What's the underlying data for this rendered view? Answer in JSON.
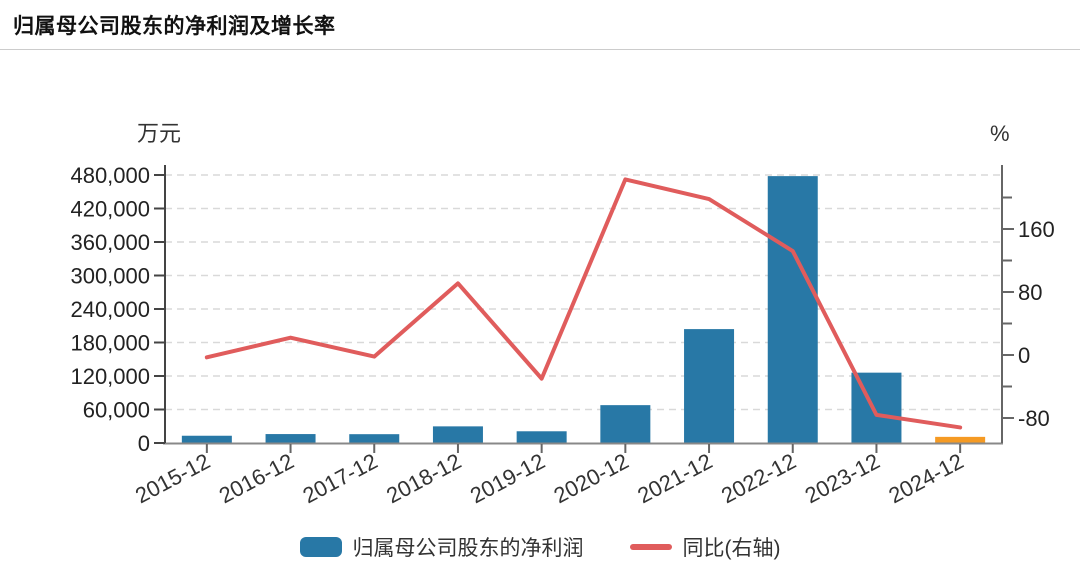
{
  "header": {
    "title": "归属母公司股东的净利润及增长率"
  },
  "chart_data": {
    "type": "bar",
    "title": "归属母公司股东的净利润及增长率",
    "categories": [
      "2015-12",
      "2016-12",
      "2017-12",
      "2018-12",
      "2019-12",
      "2020-12",
      "2021-12",
      "2022-12",
      "2023-12",
      "2024-12"
    ],
    "series": [
      {
        "name": "归属母公司股东的净利润",
        "type": "bar",
        "yaxis": "left",
        "unit": "万元",
        "values": [
          13000,
          16000,
          15800,
          29800,
          21000,
          67800,
          204000,
          478000,
          126000,
          11000
        ]
      },
      {
        "name": "同比(右轴)",
        "type": "line",
        "yaxis": "right",
        "unit": "%",
        "values": [
          -3,
          22,
          -2,
          91,
          -30,
          223,
          198,
          132,
          -76,
          -92
        ]
      }
    ],
    "left_axis": {
      "unit": "万元",
      "min": 0,
      "max": 480000,
      "tick_step": 60000,
      "grid": "dashed"
    },
    "right_axis": {
      "unit": "%",
      "labeled_ticks": [
        160,
        80,
        0,
        -80
      ],
      "minor_ticks": [
        200,
        120,
        40,
        -40
      ]
    },
    "colors": {
      "bar": "#2878a6",
      "bar_last": "#f59a23",
      "line": "#e05c5c"
    },
    "legend": [
      {
        "label": "归属母公司股东的净利润",
        "swatch": "bar-swatch",
        "color": "#2878a6"
      },
      {
        "label": "同比(右轴)",
        "swatch": "line-swatch",
        "color": "#e05c5c"
      }
    ],
    "legend_position": "bottom-center"
  }
}
